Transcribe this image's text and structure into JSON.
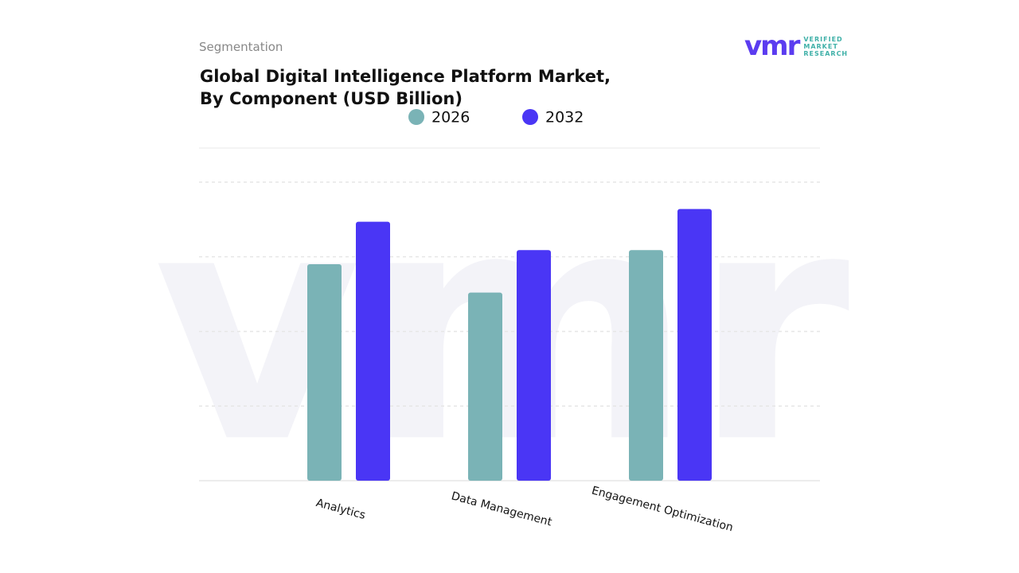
{
  "header": {
    "section": "Segmentation",
    "logo": {
      "mark": "vmr",
      "lines": [
        "VERIFIED",
        "MARKET",
        "RESEARCH"
      ]
    }
  },
  "chart_data": {
    "type": "bar",
    "title": "Global Digital Intelligence Platform Market, By Component (USD Billion)",
    "categories": [
      "Analytics",
      "Data Management",
      "Engagement Optimization"
    ],
    "series": [
      {
        "name": "2026",
        "color": "#7ab3b6",
        "values": [
          2.9,
          2.52,
          3.09
        ]
      },
      {
        "name": "2032",
        "color": "#4a36f5",
        "values": [
          3.47,
          3.09,
          3.64
        ]
      }
    ],
    "ylim": [
      0,
      4.5
    ],
    "yticks": [
      0,
      1,
      2,
      3,
      4
    ],
    "grid": true
  }
}
